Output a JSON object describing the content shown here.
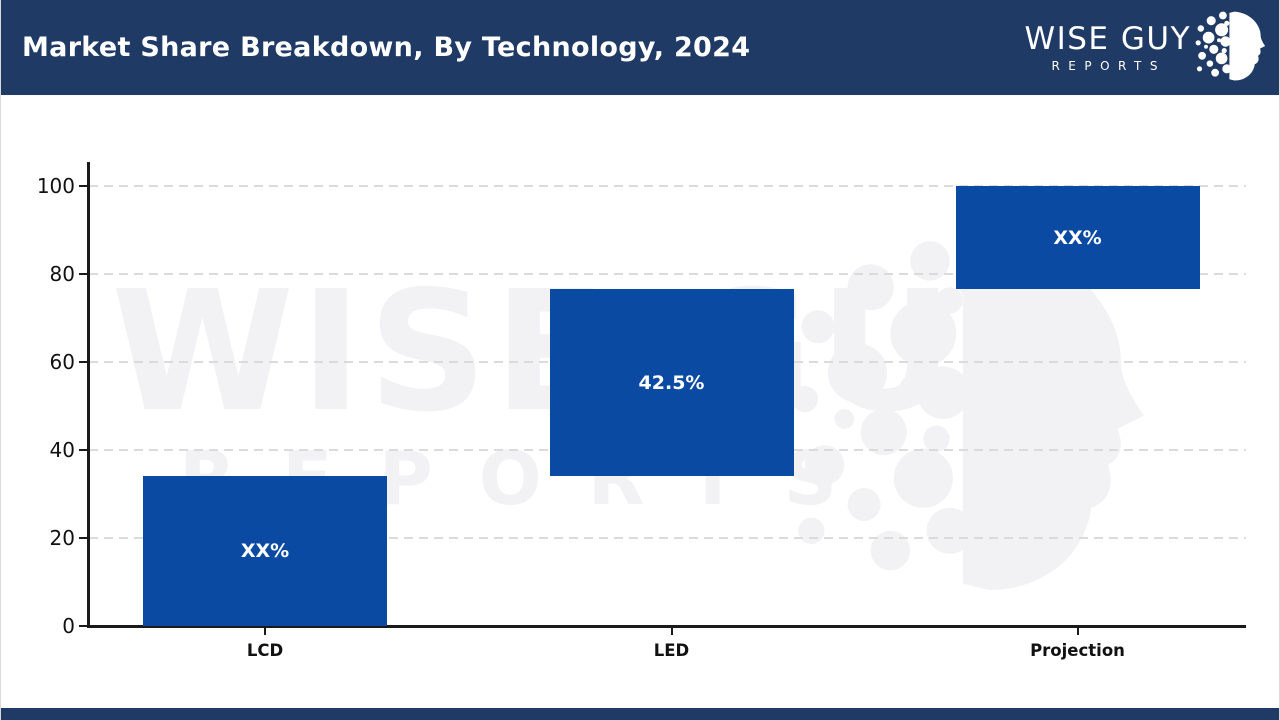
{
  "header": {
    "title": "Market Share Breakdown, By Technology, 2024",
    "logo": {
      "name": "WISE GUY",
      "sub": "REPORTS"
    }
  },
  "watermark": {
    "big": "WISE GUY",
    "sub": "REPORTS"
  },
  "chart_data": {
    "type": "bar",
    "variant": "floating-waterfall-columns",
    "title": "Market Share Breakdown, By Technology, 2024",
    "categories": [
      "LCD",
      "LED",
      "Projection"
    ],
    "segments": [
      {
        "category": "LCD",
        "start": 0,
        "end": 34,
        "label": "XX%"
      },
      {
        "category": "LED",
        "start": 34,
        "end": 76.5,
        "label": "42.5%"
      },
      {
        "category": "Projection",
        "start": 76.5,
        "end": 100,
        "label": "XX%"
      }
    ],
    "yticks": [
      0,
      20,
      40,
      60,
      80,
      100
    ],
    "ylim": [
      0,
      105
    ],
    "xlabel": "",
    "ylabel": "",
    "grid": "horizontal-dashed",
    "legend": "none",
    "bar_color": "#0B4AA2",
    "bar_label_color": "#FFFFFF"
  },
  "colors": {
    "header_bg": "#203A66",
    "footer_bg": "#203A66",
    "bar": "#0B4AA2",
    "gridline": "#DBDBDB",
    "axis": "#1A1A1A",
    "watermark": "#F2F2F4"
  }
}
